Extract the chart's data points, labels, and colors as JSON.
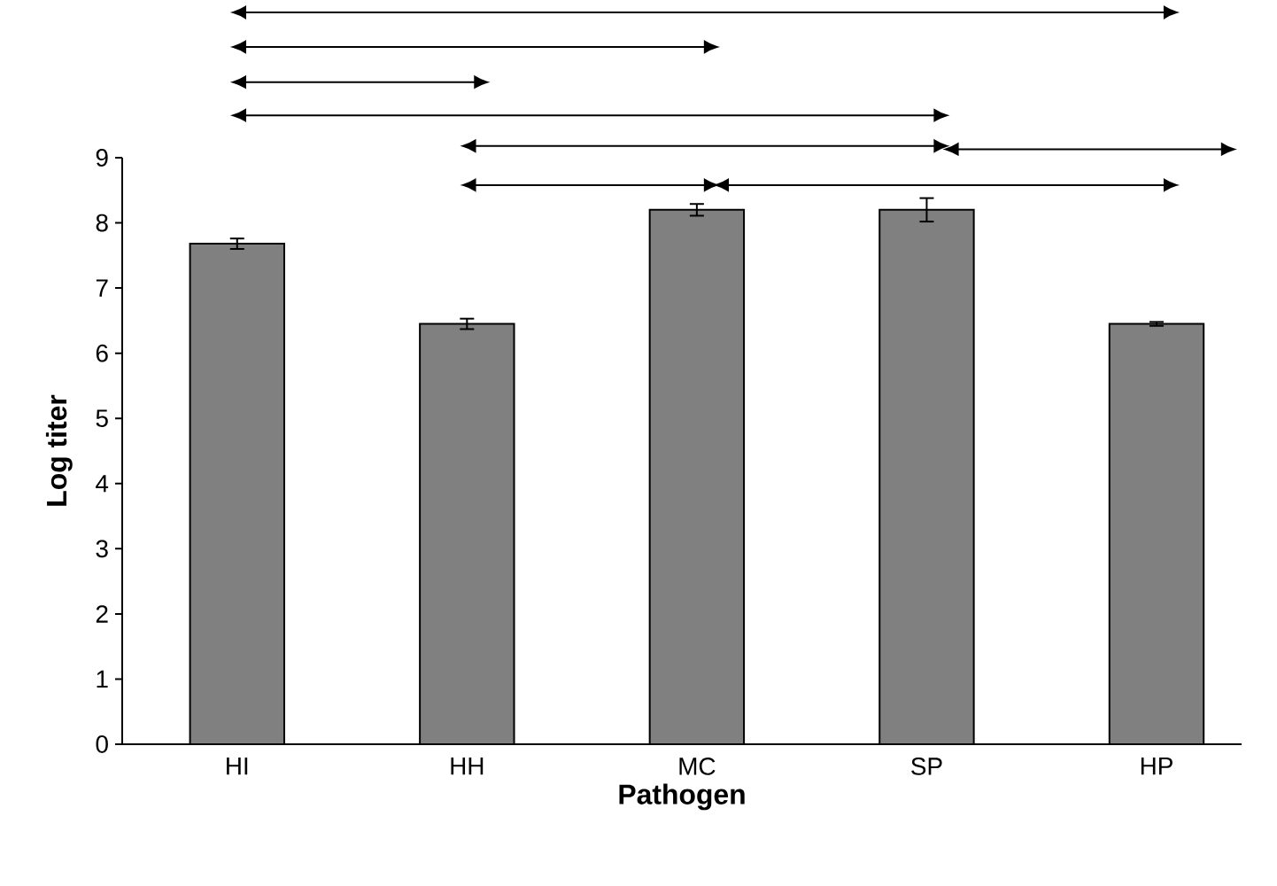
{
  "chart_data": {
    "type": "bar",
    "xlabel": "Pathogen",
    "ylabel": "Log titer",
    "categories": [
      "HI",
      "HH",
      "MC",
      "SP",
      "HP"
    ],
    "values": [
      7.68,
      6.45,
      8.2,
      8.2,
      6.45
    ],
    "errors": [
      0.08,
      0.08,
      0.09,
      0.18,
      0.03
    ],
    "color": "#808080",
    "ylim": [
      0,
      9
    ],
    "yticks": [
      0,
      1,
      2,
      3,
      4,
      5,
      6,
      7,
      8,
      9
    ]
  }
}
